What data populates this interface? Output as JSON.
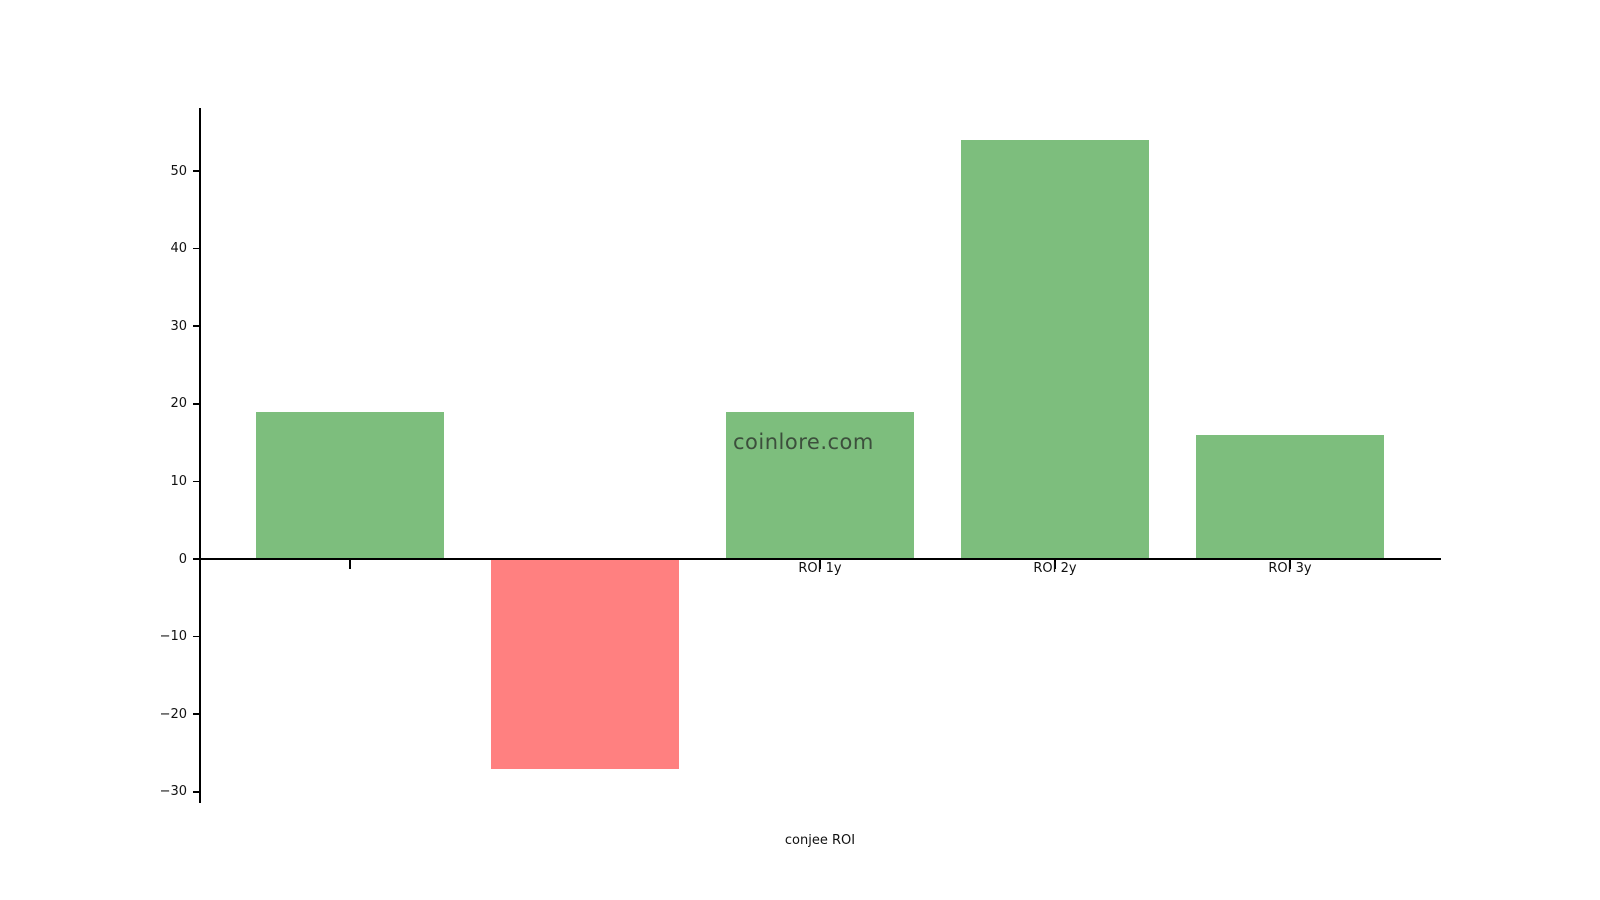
{
  "chart_data": {
    "type": "bar",
    "categories": [
      "",
      "",
      "ROI 1y",
      "ROI 2y",
      "ROI 3y"
    ],
    "values": [
      19,
      -27,
      19,
      54,
      16
    ],
    "bar_colors": [
      "#7dbe7d",
      "#ff8080",
      "#7dbe7d",
      "#7dbe7d",
      "#7dbe7d"
    ],
    "positive_color": "#7dbe7d",
    "negative_color": "#ff8080",
    "title": "",
    "xlabel": "conjee ROI",
    "ylabel": "",
    "ylim": [
      -31,
      58
    ],
    "yticks": [
      50,
      40,
      30,
      20,
      10,
      0,
      -10,
      -20,
      -30
    ],
    "grid": false,
    "legend": false,
    "watermark": "coinlore.com",
    "axis_color": "#000000",
    "text_color": "#111111"
  }
}
